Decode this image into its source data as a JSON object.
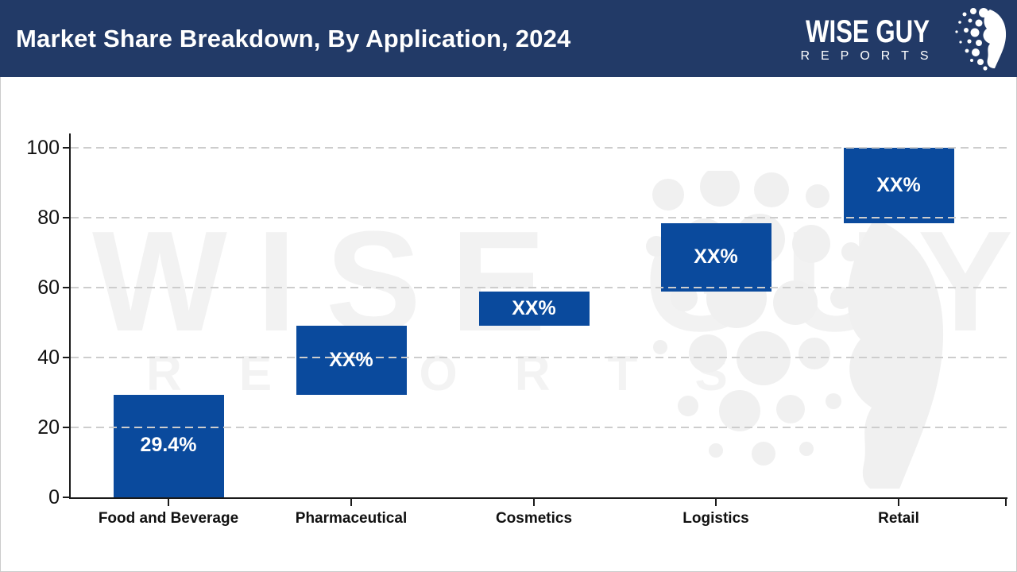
{
  "header": {
    "title": "Market Share Breakdown, By Application, 2024",
    "logo": {
      "wordmark": "WISE GUY",
      "subtext": "REPORTS"
    }
  },
  "watermark": {
    "wordmark": "WISE GUY",
    "subtext": "REPORTS"
  },
  "chart_data": {
    "type": "bar",
    "subtype": "waterfall",
    "title": "Market Share Breakdown, By Application, 2024",
    "categories": [
      "Food and Beverage",
      "Pharmaceutical",
      "Cosmetics",
      "Logistics",
      "Retail"
    ],
    "bar_labels": [
      "29.4%",
      "XX%",
      "XX%",
      "XX%",
      "XX%"
    ],
    "segments": [
      {
        "category": "Food and Beverage",
        "start": 0,
        "end": 29.4,
        "label": "29.4%"
      },
      {
        "category": "Pharmaceutical",
        "start": 29.4,
        "end": 49.0,
        "label": "XX%"
      },
      {
        "category": "Cosmetics",
        "start": 49.0,
        "end": 58.8,
        "label": "XX%"
      },
      {
        "category": "Logistics",
        "start": 58.8,
        "end": 78.4,
        "label": "XX%"
      },
      {
        "category": "Retail",
        "start": 78.4,
        "end": 100.0,
        "label": "XX%"
      }
    ],
    "estimated_increments": [
      29.4,
      19.6,
      9.8,
      19.6,
      21.6
    ],
    "y_ticks": [
      0,
      20,
      40,
      60,
      80,
      100
    ],
    "ylim": [
      0,
      104
    ],
    "xlabel": "",
    "ylabel": "",
    "grid": "horizontal-dashed",
    "legend": "none",
    "bar_color": "#0A4A9D",
    "bar_label_color": "#ffffff"
  },
  "colors": {
    "header_bg": "#223A67",
    "bar": "#0A4A9D",
    "grid": "#cdcdcd",
    "axis": "#1a1a1a",
    "watermark": "#f2f2f2"
  }
}
